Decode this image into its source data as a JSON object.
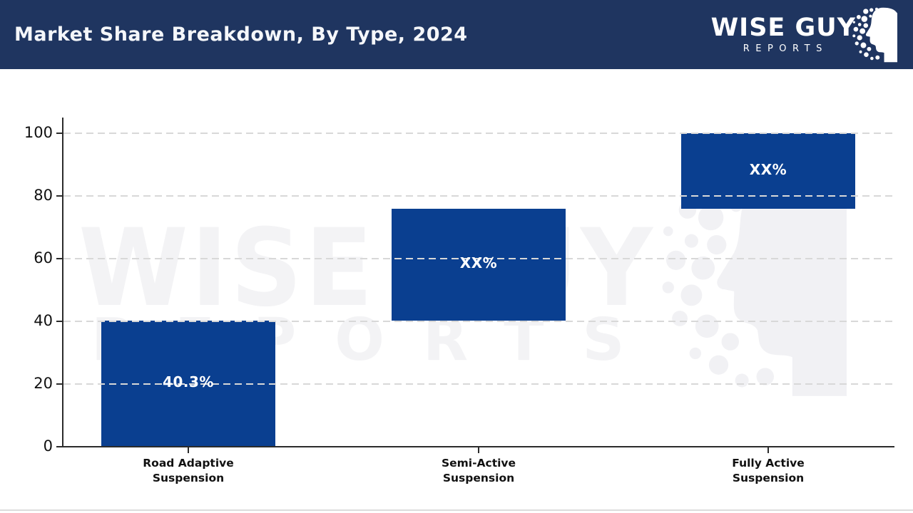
{
  "header": {
    "title": "Market Share Breakdown, By Type, 2024",
    "background_color": "#1f3560",
    "logo": {
      "line1": "WISE GUY",
      "line2": "REPORTS",
      "icon": "dotted-head-profile-icon"
    }
  },
  "watermark": {
    "line1": "WISE GUY",
    "line2": "REPORTS",
    "icon": "dotted-head-profile-icon"
  },
  "chart_data": {
    "type": "bar",
    "subtype": "floating-waterfall",
    "title": "Market Share Breakdown, By Type, 2024",
    "categories": [
      {
        "line1": "Road Adaptive",
        "line2": "Suspension"
      },
      {
        "line1": "Semi-Active",
        "line2": "Suspension"
      },
      {
        "line1": "Fully Active",
        "line2": "Suspension"
      }
    ],
    "bars": [
      {
        "label": "40.3%",
        "start": 0,
        "end": 40.3
      },
      {
        "label": "XX%",
        "start": 40.3,
        "end": 76
      },
      {
        "label": "XX%",
        "start": 76,
        "end": 100
      }
    ],
    "ylim": [
      0,
      100
    ],
    "yticks": [
      0,
      20,
      40,
      60,
      80,
      100
    ],
    "xlabel": "",
    "ylabel": "",
    "grid": "horizontal-dashed-drawn-above-bars",
    "legend": "none",
    "bar_color": "#0a3f90",
    "bar_label_color": "#ffffff",
    "grid_color": "#d8d8d8",
    "axis_color": "#2b2b2b"
  }
}
